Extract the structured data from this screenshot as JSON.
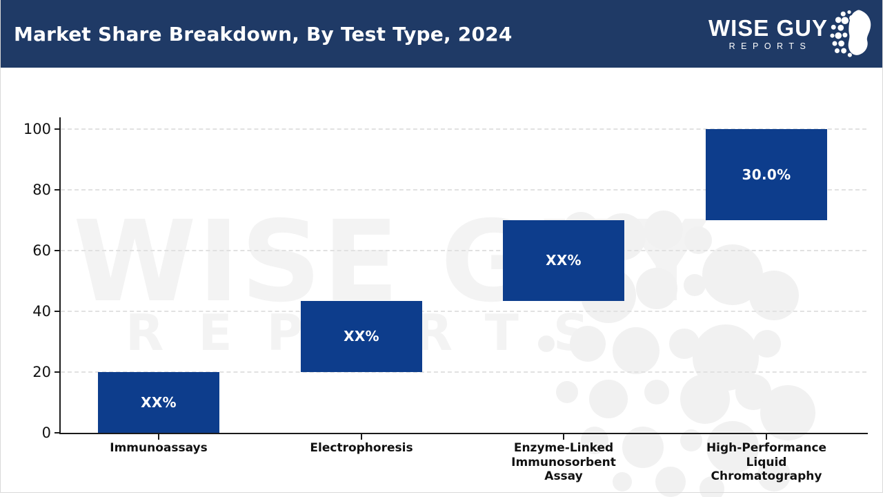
{
  "header": {
    "title": "Market Share Breakdown, By Test Type, 2024",
    "logo": {
      "name": "WISE GUY",
      "subtitle": "REPORTS"
    }
  },
  "watermark": {
    "line1": "WISE GUY",
    "line2": "REPORTS"
  },
  "colors": {
    "header_bg": "#1f3a66",
    "bar": "#0d3d8c",
    "bar_label": "#ffffff",
    "grid": "#e1e1e1",
    "axis": "#1a1a1a",
    "watermark": "#f3f3f3"
  },
  "chart_data": {
    "type": "bar",
    "subtype": "floating-waterfall",
    "title": "Market Share Breakdown, By Test Type, 2024",
    "xlabel": "",
    "ylabel": "",
    "grid": "horizontal-dashed",
    "legend": "none",
    "ylim": [
      0,
      104
    ],
    "yticks": [
      0,
      20,
      40,
      60,
      80,
      100
    ],
    "categories": [
      "Immunoassays",
      "Electrophoresis",
      "Enzyme-Linked Immunosorbent Assay",
      "High-Performance Liquid Chromatography"
    ],
    "segments": [
      {
        "category": "Immunoassays",
        "lines": [
          "Immunoassays"
        ],
        "start": 0,
        "end": 20,
        "value": 20,
        "bar_label": "XX%"
      },
      {
        "category": "Electrophoresis",
        "lines": [
          "Electrophoresis"
        ],
        "start": 20,
        "end": 43.5,
        "value": 23.5,
        "bar_label": "XX%"
      },
      {
        "category": "Enzyme-Linked Immunosorbent Assay",
        "lines": [
          "Enzyme-Linked",
          "Immunosorbent",
          "Assay"
        ],
        "start": 43.5,
        "end": 70,
        "value": 26.5,
        "bar_label": "XX%"
      },
      {
        "category": "High-Performance Liquid Chromatography",
        "lines": [
          "High-Performance",
          "Liquid",
          "Chromatography"
        ],
        "start": 70,
        "end": 100,
        "value": 30,
        "bar_label": "30.0%"
      }
    ]
  }
}
